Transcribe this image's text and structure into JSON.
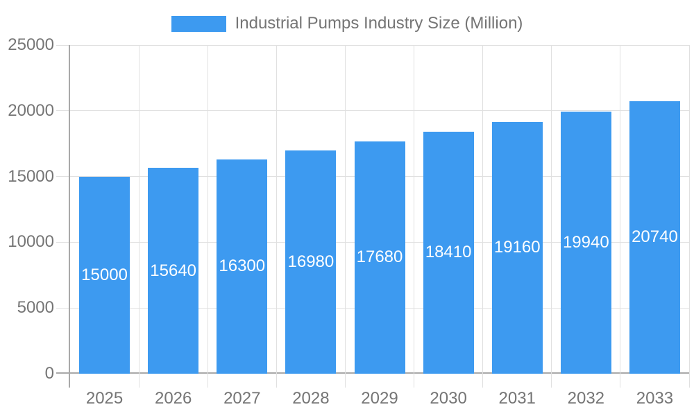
{
  "chart_data": {
    "type": "bar",
    "title": "Industrial Pumps Industry Size (Million)",
    "categories": [
      "2025",
      "2026",
      "2027",
      "2028",
      "2029",
      "2030",
      "2031",
      "2032",
      "2033"
    ],
    "values": [
      15000,
      15640,
      16300,
      16980,
      17680,
      18410,
      19160,
      19940,
      20740
    ],
    "xlabel": "",
    "ylabel": "",
    "ylim": [
      0,
      25000
    ],
    "yticks": [
      0,
      5000,
      10000,
      15000,
      20000,
      25000
    ],
    "grid": "on",
    "legend_position": "top",
    "value_labels": "inside-center",
    "colors": {
      "bar": "#3d9af0",
      "axis_label": "#757575",
      "gridline": "#e0e0e0",
      "axis_line": "#a9a9a9",
      "value_label": "#ffffff"
    }
  }
}
